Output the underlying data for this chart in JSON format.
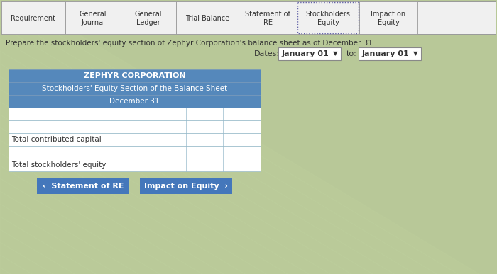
{
  "bg_color": "#b8c898",
  "nav_bg": "#e8e8e8",
  "tab_labels": [
    "Requirement",
    "General\nJournal",
    "General\nLedger",
    "Trial Balance",
    "Statement of\nRE",
    "Stockholders\nEquity",
    "Impact on\nEquity"
  ],
  "tab_widths": [
    90,
    78,
    78,
    88,
    82,
    88,
    82
  ],
  "instruction": "Prepare the stockholders' equity section of Zephyr Corporation's balance sheet as of December 31.",
  "dates_label": "Dates:",
  "date_from": "January 01",
  "corp_title": "ZEPHYR CORPORATION",
  "corp_subtitle": "Stockholders' Equity Section of the Balance Sheet",
  "corp_date": "December 31",
  "table_rows": [
    "",
    "",
    "Total contributed capital",
    "",
    "Total stockholders' equity"
  ],
  "btn_left": "‹  Statement of RE",
  "btn_right": "Impact on Equity  ›",
  "table_header_bg": "#5588bb",
  "btn_color": "#4477bb",
  "btn_text_color": "#ffffff",
  "tab_border_color": "#999999",
  "text_color": "#333333",
  "white": "#ffffff",
  "light_row": "#ddeeff",
  "row_border": "#99bbcc"
}
